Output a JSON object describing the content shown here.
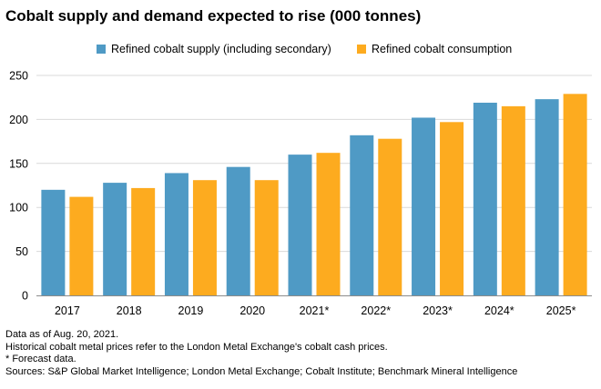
{
  "colors": {
    "supply": "#4f9ac5",
    "consumption": "#fdab1f",
    "grid": "#d9d9d9",
    "axis": "#8c8c8c"
  },
  "chart_data": {
    "type": "bar",
    "title": "Cobalt supply and demand expected to rise (000 tonnes)",
    "categories": [
      "2017",
      "2018",
      "2019",
      "2020",
      "2021*",
      "2022*",
      "2023*",
      "2024*",
      "2025*"
    ],
    "series": [
      {
        "name": "Refined cobalt supply (including secondary)",
        "values": [
          120,
          128,
          139,
          146,
          160,
          182,
          202,
          219,
          223
        ]
      },
      {
        "name": "Refined cobalt consumption",
        "values": [
          112,
          122,
          131,
          131,
          162,
          178,
          197,
          215,
          229
        ]
      }
    ],
    "y_ticks": [
      0,
      50,
      100,
      150,
      200,
      250
    ],
    "ylim": [
      0,
      250
    ],
    "xlabel": "",
    "ylabel": "",
    "grid": true,
    "legend_position": "top-center"
  },
  "notes": [
    "Data as of Aug. 20, 2021.",
    "Historical cobalt metal prices refer to the London Metal Exchange's cobalt cash prices.",
    "* Forecast data.",
    "Sources: S&P Global Market Intelligence; London Metal Exchange; Cobalt Institute; Benchmark Mineral Intelligence"
  ]
}
